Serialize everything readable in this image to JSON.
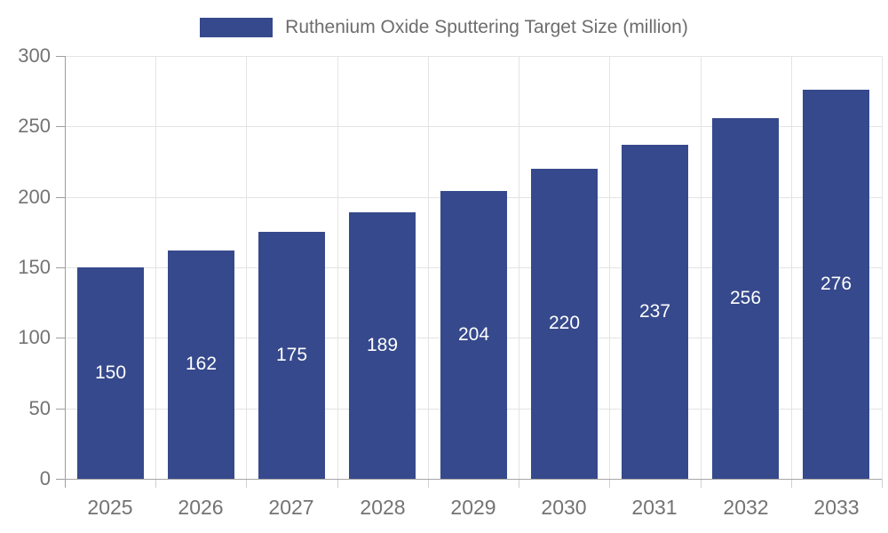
{
  "chart_data": {
    "type": "bar",
    "title": "Ruthenium Oxide Sputtering Target Size (million)",
    "categories": [
      "2025",
      "2026",
      "2027",
      "2028",
      "2029",
      "2030",
      "2031",
      "2032",
      "2033"
    ],
    "values": [
      150,
      162,
      175,
      189,
      204,
      220,
      237,
      256,
      276
    ],
    "xlabel": "",
    "ylabel": "",
    "ylim": [
      0,
      300
    ],
    "yticks": [
      0,
      50,
      100,
      150,
      200,
      250,
      300
    ],
    "grid": true,
    "legend_position": "top-center",
    "value_labels": "inside-center",
    "colors": {
      "bar": "#36498C",
      "grid": "#e4e4e4",
      "axis": "#9e9e9e",
      "bottom_axis": "#a6a6a6",
      "x_tick": "#cfcfcf",
      "tick_label": "#737373",
      "value_label": "#ffffff",
      "legend_text": "#6d6d6d",
      "background": "#ffffff"
    }
  }
}
